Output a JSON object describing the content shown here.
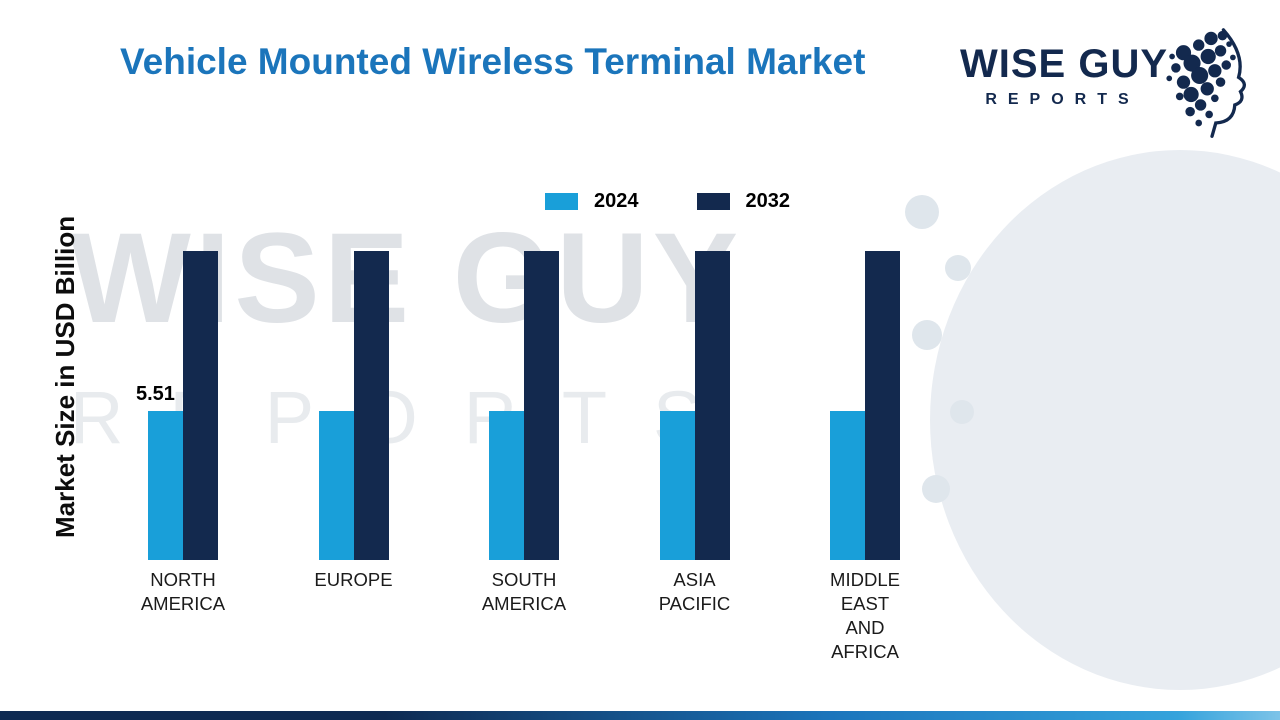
{
  "page": {
    "title": "Vehicle Mounted Wireless Terminal Market"
  },
  "logo": {
    "name": "WISE GUY",
    "subtitle": "REPORTS"
  },
  "watermark": {
    "line1": "WISE GUY",
    "line2": "REPORTS"
  },
  "colors": {
    "title_blue": "#1b75bb",
    "bar_2024": "#199fd9",
    "bar_2032": "#13294e",
    "navy": "#13294e"
  },
  "chart_data": {
    "type": "bar",
    "title": "Vehicle Mounted Wireless Terminal Market",
    "xlabel": "",
    "ylabel": "Market Size in USD Billion",
    "categories": [
      "NORTH\nAMERICA",
      "EUROPE",
      "SOUTH\nAMERICA",
      "ASIA\nPACIFIC",
      "MIDDLE\nEAST\nAND\nAFRICA"
    ],
    "legend": [
      "2024",
      "2032"
    ],
    "legend_position": "top",
    "grid": false,
    "ylim": [
      0,
      12
    ],
    "series": [
      {
        "name": "2024",
        "color": "#199fd9",
        "values": [
          5.51,
          5.51,
          5.51,
          5.51,
          5.51
        ]
      },
      {
        "name": "2032",
        "color": "#13294e",
        "values": [
          11.4,
          11.4,
          11.4,
          11.4,
          11.4
        ]
      }
    ],
    "annotations": [
      {
        "text": "5.51",
        "series_index": 0,
        "category_index": 0
      }
    ]
  }
}
